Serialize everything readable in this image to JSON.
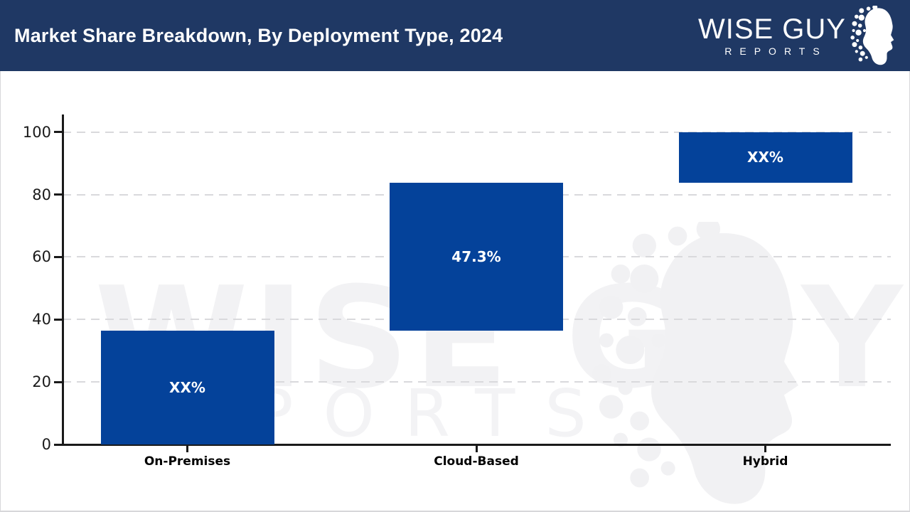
{
  "header": {
    "title": "Market Share Breakdown, By Deployment Type, 2024",
    "logo": {
      "brand": "WISE GUY",
      "sub": "REPORTS"
    }
  },
  "watermark": {
    "line1": "WISE GUY",
    "line2": "REPORTS"
  },
  "colors": {
    "header_bg": "#1F3864",
    "bar_fill": "#04429A",
    "bar_label": "#FFFFFF",
    "gridline": "#D9D9DC",
    "axis": "#1A1A1A",
    "watermark": "#F2F2F4"
  },
  "chart_data": {
    "type": "bar",
    "subtype": "waterfall",
    "title": "Market Share Breakdown, By Deployment Type, 2024",
    "categories": [
      "On-Premises",
      "Cloud-Based",
      "Hybrid"
    ],
    "bars": [
      {
        "category": "On-Premises",
        "label": "XX%",
        "start": 0,
        "end": 36.5
      },
      {
        "category": "Cloud-Based",
        "label": "47.3%",
        "start": 36.5,
        "end": 83.8
      },
      {
        "category": "Hybrid",
        "label": "XX%",
        "start": 83.8,
        "end": 100
      }
    ],
    "xlabel": "",
    "ylabel": "",
    "ylim": [
      0,
      100
    ],
    "yticks": [
      0,
      20,
      40,
      60,
      80,
      100
    ],
    "grid": "horizontal dashed",
    "legend": "none"
  }
}
